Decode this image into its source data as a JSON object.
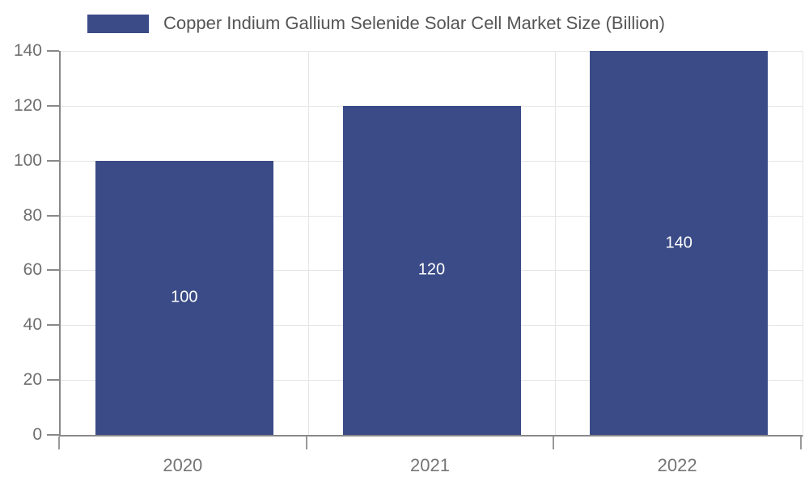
{
  "legend": {
    "label": "Copper Indium Gallium Selenide Solar Cell Market Size (Billion)"
  },
  "chart_data": {
    "type": "bar",
    "title": "Copper Indium Gallium Selenide Solar Cell Market Size (Billion)",
    "categories": [
      "2020",
      "2021",
      "2022"
    ],
    "values": [
      100,
      120,
      140
    ],
    "value_labels": [
      "100",
      "120",
      "140"
    ],
    "xlabel": "",
    "ylabel": "",
    "ylim": [
      0,
      140
    ],
    "yticks": [
      0,
      20,
      40,
      60,
      80,
      100,
      120,
      140
    ],
    "ytick_labels": [
      "0",
      "20",
      "40",
      "60",
      "80",
      "100",
      "120",
      "140"
    ],
    "grid": true,
    "legend_position": "top-left",
    "colors": {
      "bar": "#3A4B87",
      "value_label": "#ffffff",
      "axis": "#888888",
      "grid": "#e5e5e5",
      "tick_label": "#6e6e6e",
      "legend_text": "#555555",
      "background": "#ffffff"
    }
  }
}
